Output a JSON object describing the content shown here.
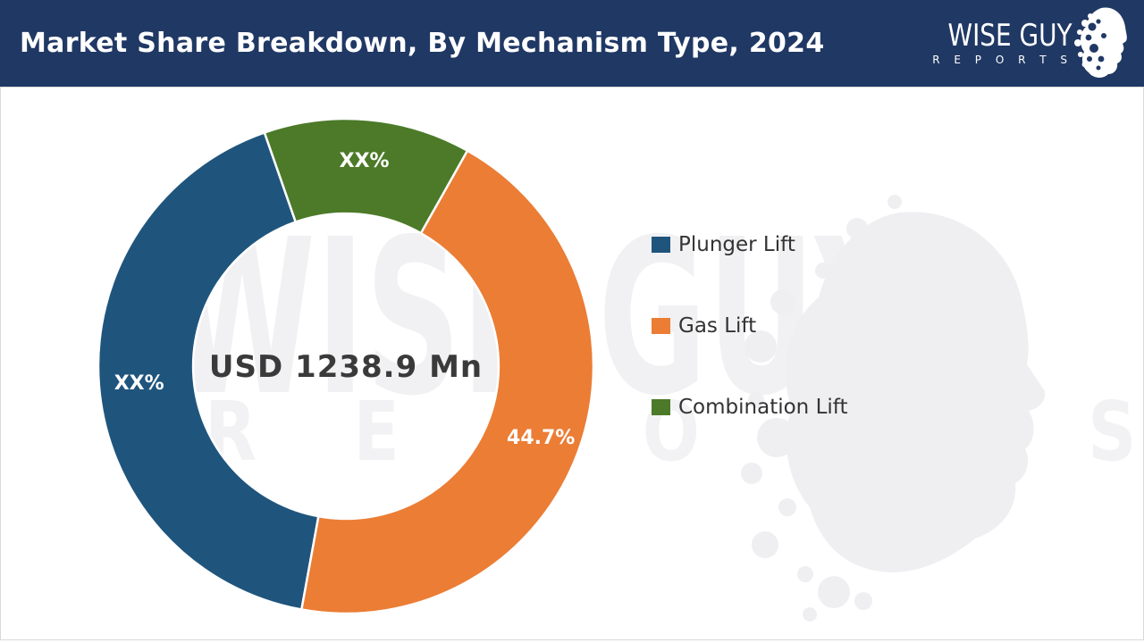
{
  "header": {
    "title": "Market Share Breakdown, By Mechanism Type, 2024",
    "bg_color": "#203864",
    "logo": {
      "wordmark": "WISE GUY",
      "subtext": "R E P O R T S"
    }
  },
  "watermark": {
    "line1": "WISE GUY",
    "line2": "R E P O R T S"
  },
  "chart_data": {
    "type": "pie",
    "subtype": "donut",
    "title": "Market Share Breakdown, By Mechanism Type, 2024",
    "center_label": "USD 1238.9 Mn",
    "categories": [
      "Plunger Lift",
      "Gas Lift",
      "Combination Lift"
    ],
    "series": [
      {
        "name": "Plunger Lift",
        "value_pct": 41.8,
        "displayed_label": "XX%",
        "color": "#1F557D"
      },
      {
        "name": "Gas Lift",
        "value_pct": 44.7,
        "displayed_label": "44.7%",
        "color": "#EB7D35"
      },
      {
        "name": "Combination Lift",
        "value_pct": 13.5,
        "displayed_label": "XX%",
        "color": "#4C7A28"
      }
    ],
    "legend_position": "right",
    "start_angle_deg": 109.2,
    "direction": "counterclockwise",
    "inner_radius_ratio": 0.617,
    "slice_label_color": "#ffffff",
    "slice_border_color": "#ffffff"
  }
}
